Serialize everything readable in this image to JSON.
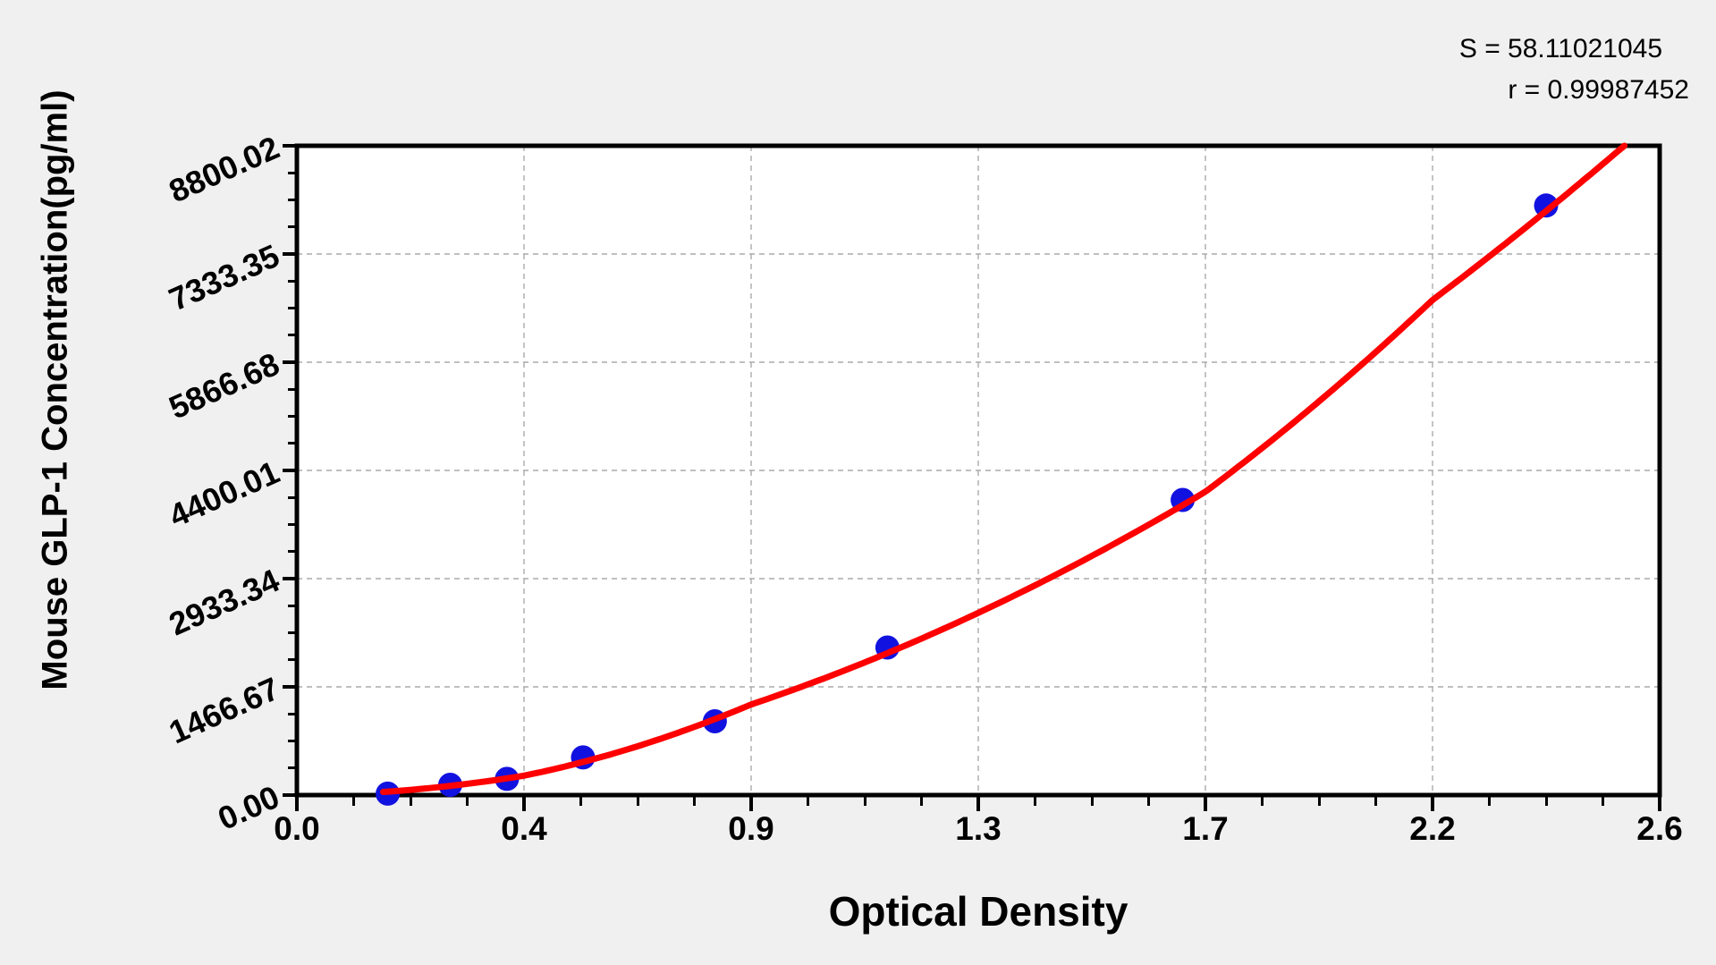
{
  "page": {
    "background": "#f0f0f0"
  },
  "stats": {
    "s_label": "S = 58.11021045",
    "r_label": "r = 0.99987452"
  },
  "axes": {
    "x": {
      "title": "Optical Density",
      "ticks": [
        "0.0",
        "0.4",
        "0.9",
        "1.3",
        "1.7",
        "2.2",
        "2.6"
      ],
      "minors_per_interval": 3
    },
    "y": {
      "title": "Mouse GLP-1 Concentration(pg/ml)",
      "ticks": [
        "0.00",
        "1466.67",
        "2933.34",
        "4400.01",
        "5866.68",
        "7333.35",
        "8800.02"
      ],
      "minors_per_interval": 3
    }
  },
  "chart_data": {
    "type": "scatter",
    "title": "",
    "xlabel": "Optical Density",
    "ylabel": "Mouse GLP-1 Concentration(pg/ml)",
    "x_tick_values": [
      0.0,
      0.4,
      0.9,
      1.3,
      1.7,
      2.2,
      2.6
    ],
    "x_ticks_evenly_spaced": true,
    "y_tick_values": [
      0.0,
      1466.67,
      2933.34,
      4400.01,
      5866.68,
      7333.35,
      8800.02
    ],
    "ylim": [
      0,
      8800.02
    ],
    "grid": "dashed major gridlines, both axes",
    "legend": "none",
    "points": [
      {
        "od": 0.16,
        "concentration": 20
      },
      {
        "od": 0.27,
        "concentration": 140
      },
      {
        "od": 0.37,
        "concentration": 220
      },
      {
        "od": 0.53,
        "concentration": 510
      },
      {
        "od": 0.82,
        "concentration": 1000
      },
      {
        "od": 1.14,
        "concentration": 2000
      },
      {
        "od": 1.66,
        "concentration": 4000
      },
      {
        "od": 2.4,
        "concentration": 7990
      }
    ],
    "fit_curve": {
      "model": "power",
      "a": 1500,
      "b": 1.9,
      "od_start": 0.152,
      "od_end": 2.538,
      "S": "58.11021045",
      "r": "0.99987452"
    },
    "colors": {
      "point": "#1212e0",
      "curve": "#ff0000",
      "grid": "#aaaaaa",
      "axis": "#000000",
      "plot_bg": "#ffffff",
      "page_bg": "#f0f0f0"
    }
  }
}
